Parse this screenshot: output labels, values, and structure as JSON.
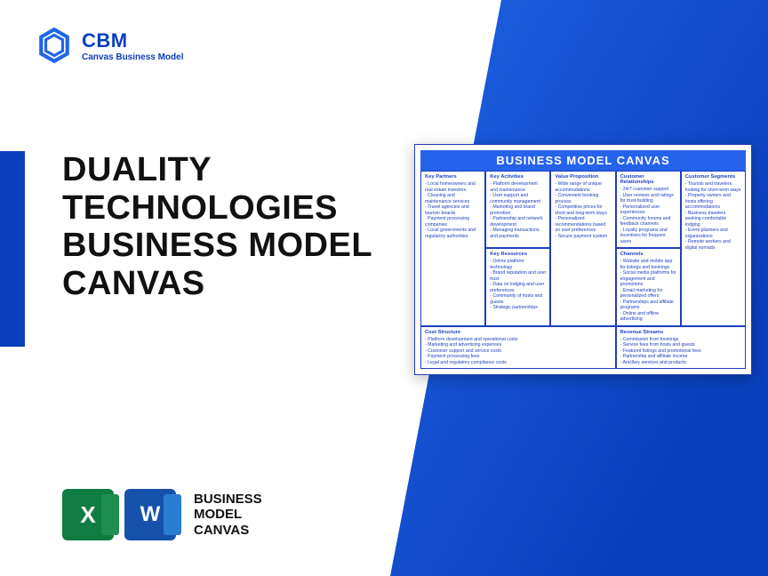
{
  "brand": {
    "abbr": "CBM",
    "full": "Canvas Business Model"
  },
  "title": {
    "l1": "DUALITY",
    "l2": "TECHNOLOGIES",
    "l3": "BUSINESS MODEL",
    "l4": "CANVAS"
  },
  "icons_label": {
    "l1": "BUSINESS",
    "l2": "MODEL",
    "l3": "CANVAS"
  },
  "canvas": {
    "heading": "BUSINESS MODEL CANVAS",
    "key_partners": {
      "h": "Key Partners",
      "items": [
        "Local homeowners and real estate investors",
        "Cleaning and maintenance services",
        "Travel agencies and tourism boards",
        "Payment processing companies",
        "Local governments and regulatory authorities"
      ]
    },
    "key_activities": {
      "h": "Key Activities",
      "items": [
        "Platform development and maintenance",
        "User support and community management",
        "Marketing and brand promotion",
        "Partnership and network development",
        "Managing transactions and payments"
      ]
    },
    "value_prop": {
      "h": "Value Proposition",
      "items": [
        "Wide range of unique accommodations",
        "Convenient booking process",
        "Competitive prices for short and long-term stays",
        "Personalized recommendations based on user preferences",
        "Secure payment system"
      ]
    },
    "cust_rel": {
      "h": "Customer Relationships",
      "items": [
        "24/7 customer support",
        "User reviews and ratings for trust-building",
        "Personalized user experiences",
        "Community forums and feedback channels",
        "Loyalty programs and incentives for frequent users"
      ]
    },
    "cust_seg": {
      "h": "Customer Segments",
      "items": [
        "Tourists and travelers looking for short-term stays",
        "Property owners and hosts offering accommodations",
        "Business travelers seeking comfortable lodging",
        "Event planners and organizations",
        "Remote workers and digital nomads"
      ]
    },
    "key_res": {
      "h": "Key Resources",
      "items": [
        "Online platform technology",
        "Brand reputation and user trust",
        "Data on lodging and user preferences",
        "Community of hosts and guests",
        "Strategic partnerships"
      ]
    },
    "channels": {
      "h": "Channels",
      "items": [
        "Website and mobile app for listings and bookings",
        "Social media platforms for engagement and promotions",
        "Email marketing for personalized offers",
        "Partnerships and affiliate programs",
        "Online and offline advertising"
      ]
    },
    "cost": {
      "h": "Cost Structure",
      "items": [
        "Platform development and operational costs",
        "Marketing and advertising expenses",
        "Customer support and service costs",
        "Payment processing fees",
        "Legal and regulatory compliance costs"
      ]
    },
    "revenue": {
      "h": "Revenue Streams",
      "items": [
        "Commission from bookings",
        "Service fees from hosts and guests",
        "Featured listings and promotional fees",
        "Partnership and affiliate income",
        "Ancillary services and products"
      ]
    }
  },
  "colors": {
    "blue": "#2166e8",
    "darkblue": "#0a3fbd",
    "excel": "#107c41",
    "word": "#1651ab"
  }
}
